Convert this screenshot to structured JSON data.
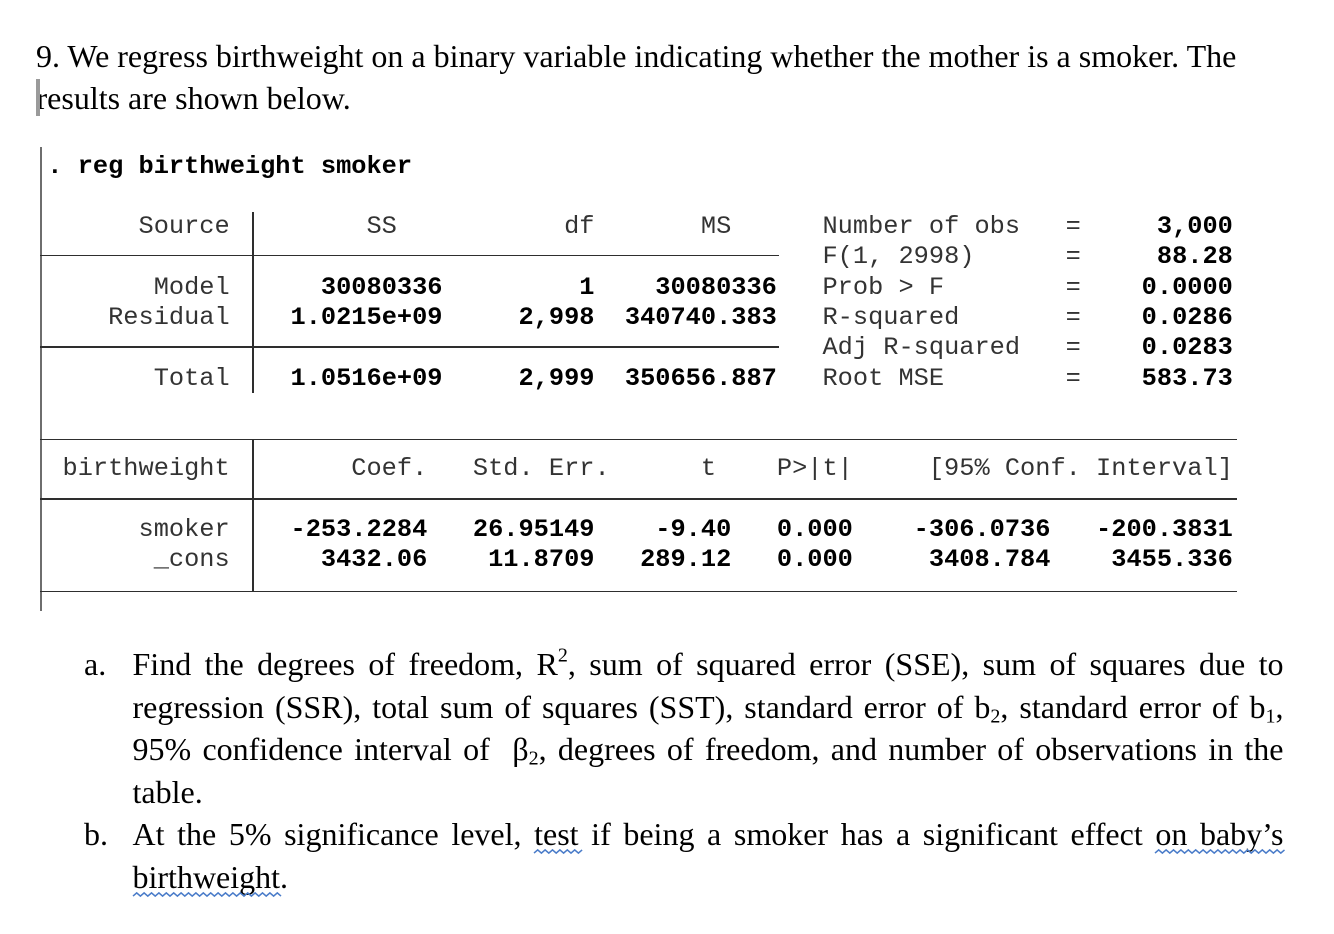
{
  "intro": {
    "lines": [
      "9. We regress birthweight on a binary variable indicating whether the mother is a smoker. The",
      "results are shown below."
    ]
  },
  "stata": {
    "command": ". reg birthweight smoker",
    "anova": {
      "headers": [
        "Source",
        "SS",
        "df",
        "MS"
      ],
      "rows": [
        {
          "source": "Model",
          "ss": "30080336",
          "df": "1",
          "ms": "30080336"
        },
        {
          "source": "Residual",
          "ss": "1.0215e+09",
          "df": "2,998",
          "ms": "340740.383"
        },
        {
          "source": "Total",
          "ss": "1.0516e+09",
          "df": "2,999",
          "ms": "350656.887"
        }
      ],
      "stats": [
        {
          "label": "Number of obs",
          "value": "3,000"
        },
        {
          "label": "F(1, 2998)",
          "value": "88.28"
        },
        {
          "label": "Prob > F",
          "value": "0.0000"
        },
        {
          "label": "R-squared",
          "value": "0.0286"
        },
        {
          "label": "Adj R-squared",
          "value": "0.0283"
        },
        {
          "label": "Root MSE",
          "value": "583.73"
        }
      ]
    },
    "coef": {
      "headers": [
        "birthweight",
        "Coef.",
        "Std. Err.",
        "t",
        "P>|t|",
        "[95% Conf. Interval]"
      ],
      "rows": [
        {
          "var": "smoker",
          "coef": "-253.2284",
          "se": "26.95149",
          "t": "-9.40",
          "p": "0.000",
          "lo": "-306.0736",
          "hi": "-200.3831"
        },
        {
          "var": "_cons",
          "coef": "3432.06",
          "se": "11.8709",
          "t": "289.12",
          "p": "0.000",
          "lo": "3408.784",
          "hi": "3455.336"
        }
      ]
    }
  },
  "questions": [
    {
      "marker": "a.",
      "lines": [
        "Find the degrees of freedom, R^{2}, sum of squared error (SSE), sum of squares due to",
        "regression (SSR), total sum of squares (SST), standard error of b_{2}, standard error of b_{1},",
        "95% confidence interval of  β_{2}, degrees of freedom, and number of observations in the",
        "table."
      ]
    },
    {
      "marker": "b.",
      "lines": [
        "At the 5% significance level, ~test~ if being a smoker has a significant effect ~on baby’s~",
        "~birthweight~."
      ]
    }
  ],
  "colors": {
    "text": "#000000",
    "mono_regular": "#333333",
    "mono_bold": "#000000",
    "rule": "#2e2e2e",
    "left_border": "#6e6e6e",
    "cursor": "#9a9a9a",
    "squiggle": "#4a7cc9"
  }
}
